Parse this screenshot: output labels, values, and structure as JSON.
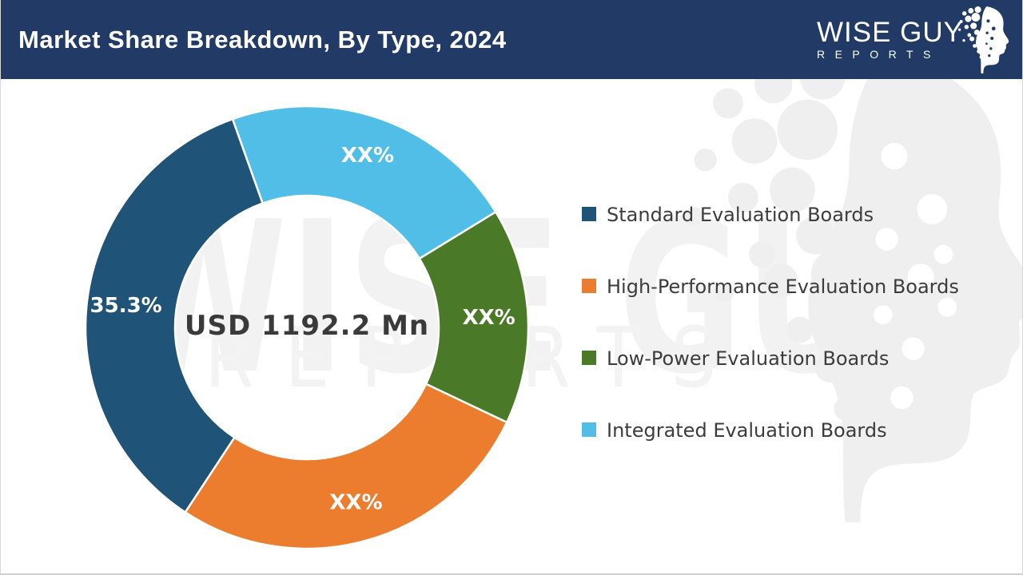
{
  "header": {
    "title": "Market Share Breakdown, By Type, 2024",
    "background_color": "#223A66",
    "logo": {
      "line1": "WISE GUY",
      "line2": "REPORTS"
    }
  },
  "watermark": {
    "line1": "WISE GUY",
    "line2": "REPORTS"
  },
  "chart_data": {
    "type": "pie",
    "subtype": "donut",
    "title": "Market Share Breakdown, By Type, 2024",
    "center_label": "USD 1192.2 Mn",
    "start_angle_deg": 109.6,
    "direction": "counterclockwise",
    "legend_position": "right",
    "slices": [
      {
        "name": "Standard Evaluation Boards",
        "value_pct": 35.3,
        "label": "35.3%",
        "color": "#1F5377"
      },
      {
        "name": "High-Performance Evaluation Boards",
        "value_pct": 27.2,
        "label": "XX%",
        "color": "#EC7D2E"
      },
      {
        "name": "Low-Power Evaluation Boards",
        "value_pct": 15.8,
        "label": "XX%",
        "color": "#4A7A28"
      },
      {
        "name": "Integrated Evaluation Boards",
        "value_pct": 21.7,
        "label": "XX%",
        "color": "#51BEE7"
      }
    ],
    "slice_label_color": "#ffffff"
  }
}
